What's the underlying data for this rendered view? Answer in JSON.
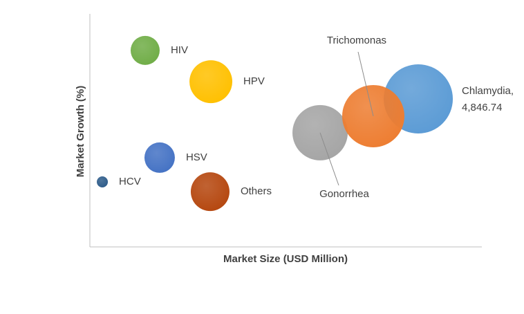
{
  "chart_data": {
    "type": "bubble",
    "x_label": "Market Size (USD Million)",
    "y_label": "Market Growth (%)",
    "xlim": [
      0,
      5785
    ],
    "ylim": [
      0,
      100
    ],
    "points": [
      {
        "name": "Chlamydia,",
        "value_label": "4,846.74",
        "x": 4846.74,
        "y": 63.5,
        "size": 50,
        "color": "#5b9bd5"
      },
      {
        "name": "Gonorrhea",
        "x": 3398,
        "y": 49.0,
        "size": 40,
        "color": "#a5a5a5"
      },
      {
        "name": "Trichomonas",
        "x": 4183,
        "y": 56.1,
        "size": 45,
        "color": "#ed7d31"
      },
      {
        "name": "HIV",
        "x": 816,
        "y": 84.3,
        "size": 21,
        "color": "#70ad47"
      },
      {
        "name": "HPV",
        "x": 1786,
        "y": 70.9,
        "size": 31,
        "color": "#ffc000"
      },
      {
        "name": "HSV",
        "x": 1030,
        "y": 38.3,
        "size": 22,
        "color": "#4472c4"
      },
      {
        "name": "HCV",
        "x": 184,
        "y": 27.9,
        "size": 8,
        "color": "#2e5c8a"
      },
      {
        "name": "Others",
        "x": 1775,
        "y": 23.7,
        "size": 28,
        "color": "#b5470f"
      }
    ]
  }
}
